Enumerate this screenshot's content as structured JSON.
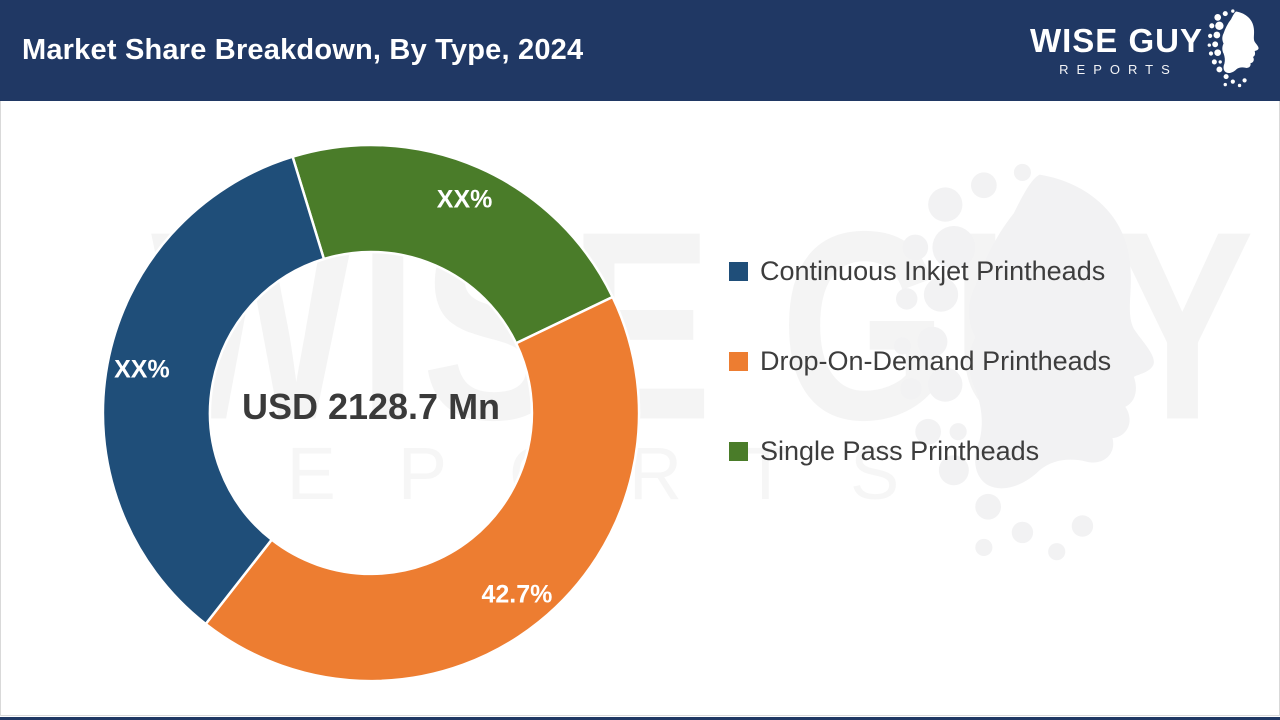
{
  "header": {
    "title": "Market Share Breakdown, By Type, 2024",
    "brand": {
      "line1": "WISE GUY",
      "line2": "REPORTS"
    }
  },
  "chart_data": {
    "type": "donut",
    "title": "Market Share Breakdown, By Type, 2024",
    "center_label": "USD 2128.7 Mn",
    "start_angle_deg": -17,
    "legend_position": "right",
    "segments": [
      {
        "name": "Single Pass Printheads",
        "value_pct": 22.6,
        "label": "XX%",
        "color": "#4a7c29"
      },
      {
        "name": "Drop-On-Demand Printheads",
        "value_pct": 42.7,
        "label": "42.7%",
        "color": "#ed7d31"
      },
      {
        "name": "Continuous Inkjet Printheads",
        "value_pct": 34.7,
        "label": "XX%",
        "color": "#1f4e79"
      }
    ]
  },
  "legend": {
    "items": [
      {
        "label": "Continuous Inkjet Printheads",
        "color": "#1f4e79"
      },
      {
        "label": "Drop-On-Demand Printheads",
        "color": "#ed7d31"
      },
      {
        "label": "Single Pass Printheads",
        "color": "#4a7c29"
      }
    ]
  },
  "watermark": {
    "line1": "WISE GUY",
    "line2": "REPORTS"
  },
  "colors": {
    "header_bg": "#203864",
    "footer_bg": "#203864",
    "center_text": "#3a3a3a",
    "legend_text": "#3d3d3d",
    "slice_label": "#ffffff"
  }
}
